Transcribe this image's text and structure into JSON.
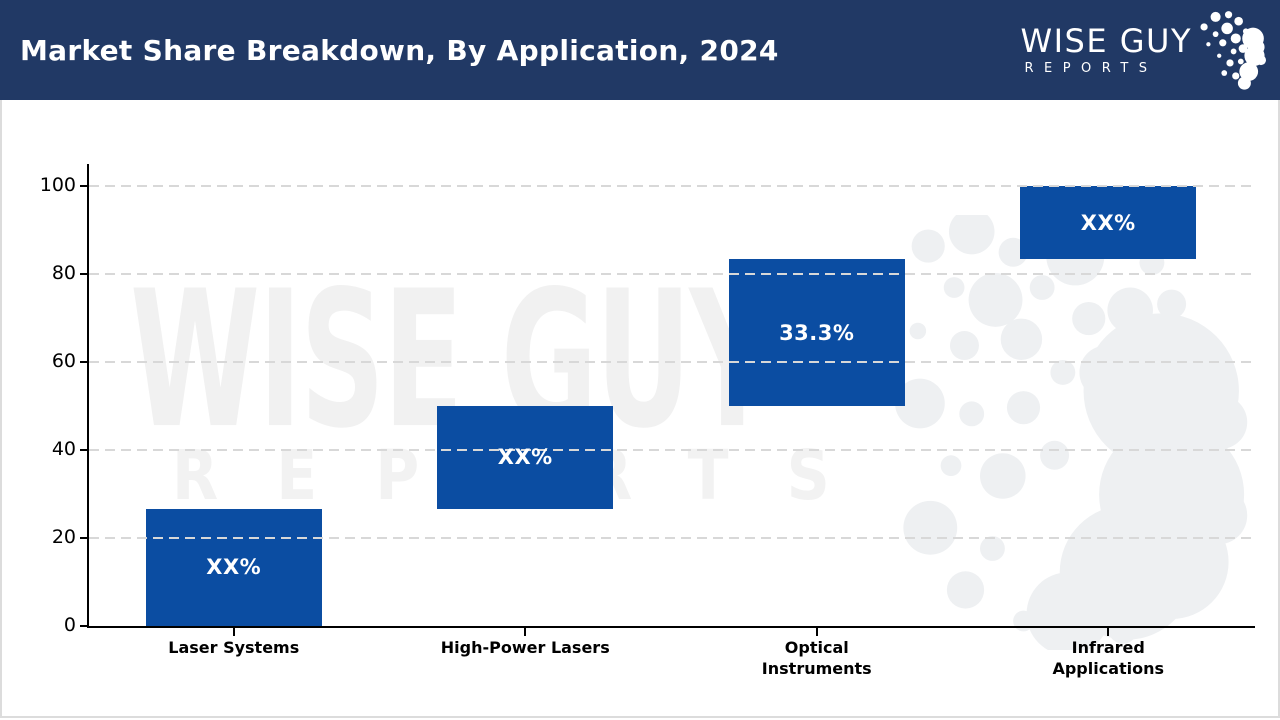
{
  "header": {
    "title": "Market Share Breakdown, By Application, 2024",
    "logo": {
      "line1": "WISE GUY",
      "line2": "REPORTS"
    }
  },
  "watermark": {
    "line1": "WISE GUY",
    "line2": "REPORTS"
  },
  "chart_data": {
    "type": "bar",
    "subtype": "floating-segment-bars",
    "title": "Market Share Breakdown, By Application, 2024",
    "categories": [
      "Laser Systems",
      "High-Power Lasers",
      "Optical\nInstruments",
      "Infrared\nApplications"
    ],
    "bars": [
      {
        "category": "Laser Systems",
        "start": 0,
        "end": 26.7,
        "label": "XX%"
      },
      {
        "category": "High-Power Lasers",
        "start": 26.7,
        "end": 50.0,
        "label": "XX%"
      },
      {
        "category": "Optical Instruments",
        "start": 50.0,
        "end": 83.3,
        "label": "33.3%"
      },
      {
        "category": "Infrared Applications",
        "start": 83.3,
        "end": 100.0,
        "label": "XX%"
      }
    ],
    "ylim": [
      0,
      100
    ],
    "yticks": [
      0,
      20,
      40,
      60,
      80,
      100
    ],
    "xlabel": "",
    "ylabel": "",
    "grid": "horizontal-dashed",
    "bar_color": "#0b4da2",
    "value_label_color": "#ffffff",
    "header_color": "#213965"
  }
}
